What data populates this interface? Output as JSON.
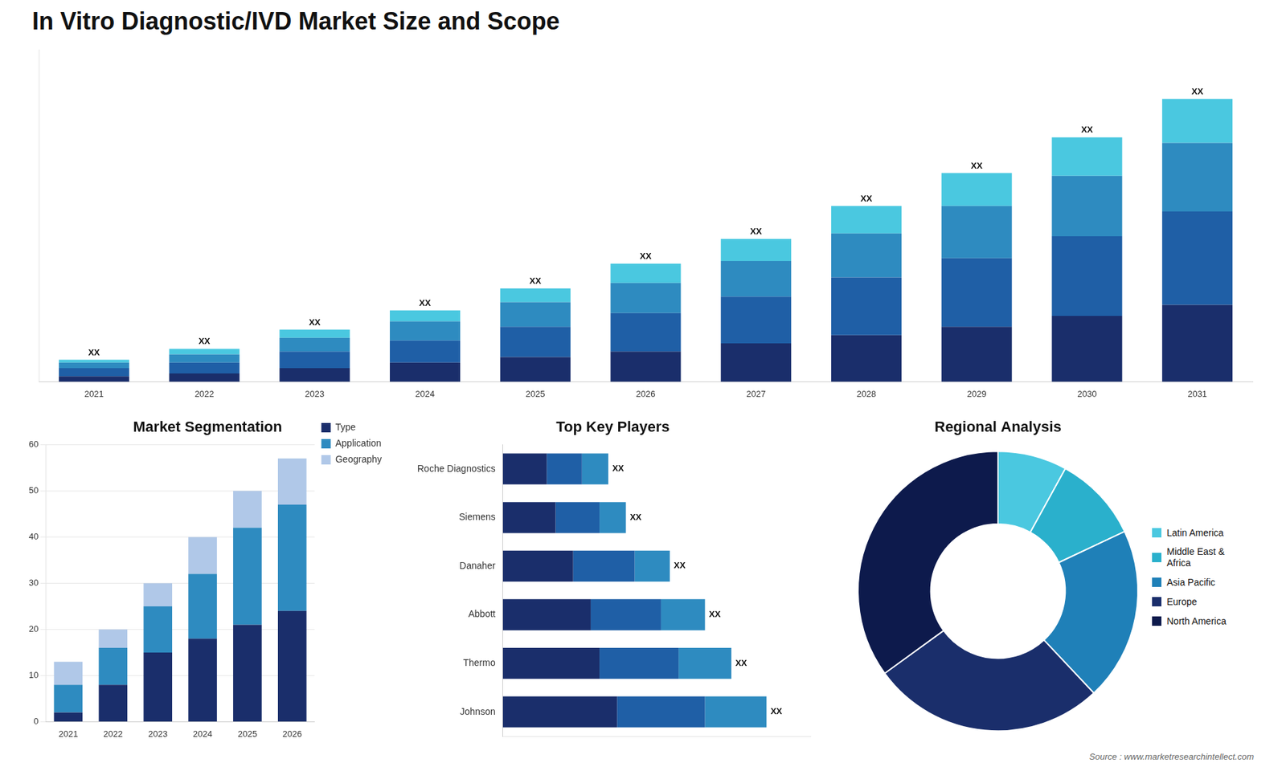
{
  "title": "In Vitro Diagnostic/IVD Market Size and Scope",
  "annotations": [
    "Source : www.marketresearchintellect.com"
  ],
  "chart_data": [
    {
      "type": "bar",
      "stacked": true,
      "categories": [
        "2021",
        "2022",
        "2023",
        "2024",
        "2025",
        "2026",
        "2027",
        "2028",
        "2029",
        "2030",
        "2031"
      ],
      "series": [
        {
          "color": "#1a2e6b",
          "values": [
            2,
            3,
            5,
            7,
            9,
            11,
            14,
            17,
            20,
            24,
            28
          ]
        },
        {
          "color": "#1f5fa6",
          "values": [
            3,
            4,
            6,
            8,
            11,
            14,
            17,
            21,
            25,
            29,
            34
          ]
        },
        {
          "color": "#2e8bc0",
          "values": [
            2,
            3,
            5,
            7,
            9,
            11,
            13,
            16,
            19,
            22,
            25
          ]
        },
        {
          "color": "#4ac8e0",
          "values": [
            1,
            2,
            3,
            4,
            5,
            7,
            8,
            10,
            12,
            14,
            16
          ]
        }
      ],
      "ylim": [
        0,
        121
      ],
      "tick_labels": "x",
      "grid": false,
      "annotations": [
        "XX",
        "XX",
        "XX",
        "XX",
        "XX",
        "XX",
        "XX",
        "XX",
        "XX",
        "XX",
        "XX"
      ]
    },
    {
      "type": "bar",
      "title": "Market Segmentation",
      "stacked": true,
      "categories": [
        "2021",
        "2022",
        "2023",
        "2024",
        "2025",
        "2026"
      ],
      "series": [
        {
          "name": "Type",
          "color": "#1a2e6b",
          "values": [
            2,
            8,
            15,
            18,
            21,
            24
          ]
        },
        {
          "name": "Application",
          "color": "#2e8bc0",
          "values": [
            6,
            8,
            10,
            14,
            21,
            23
          ]
        },
        {
          "name": "Geography",
          "color": "#b0c8e8",
          "values": [
            5,
            4,
            5,
            8,
            8,
            10
          ]
        }
      ],
      "ylim": [
        0,
        60
      ],
      "yticks": [
        0,
        10,
        20,
        30,
        40,
        50,
        60
      ],
      "grid": true,
      "legend": "right"
    },
    {
      "type": "bar",
      "title": "Top Key Players",
      "orientation": "horizontal",
      "stacked": true,
      "categories": [
        "Johnson",
        "Thermo",
        "Abbott",
        "Danaher",
        "Siemens",
        "Roche Diagnostics"
      ],
      "series": [
        {
          "color": "#1a2e6b",
          "values": [
            6.5,
            5.5,
            5.0,
            4.0,
            3.0,
            2.5
          ]
        },
        {
          "color": "#1f5fa6",
          "values": [
            5.0,
            4.5,
            4.0,
            3.5,
            2.5,
            2.0
          ]
        },
        {
          "color": "#2e8bc0",
          "values": [
            3.5,
            3.0,
            2.5,
            2.0,
            1.5,
            1.5
          ]
        }
      ],
      "xlim": [
        0,
        17.5
      ],
      "tick_labels": "y",
      "grid": false,
      "annotations": [
        "XX",
        "XX",
        "XX",
        "XX",
        "XX",
        "XX"
      ]
    },
    {
      "type": "doughnut",
      "title": "Regional Analysis",
      "categories": [
        "Latin America",
        "Middle East &\nAfrica",
        "Asia Pacific",
        "Europe",
        "North America"
      ],
      "values": [
        8,
        10,
        20,
        27,
        35
      ],
      "colors": [
        "#4ac8e0",
        "#2ab0cc",
        "#1f80b8",
        "#1a2e6b",
        "#0d1a4c"
      ],
      "legend": "right"
    }
  ]
}
